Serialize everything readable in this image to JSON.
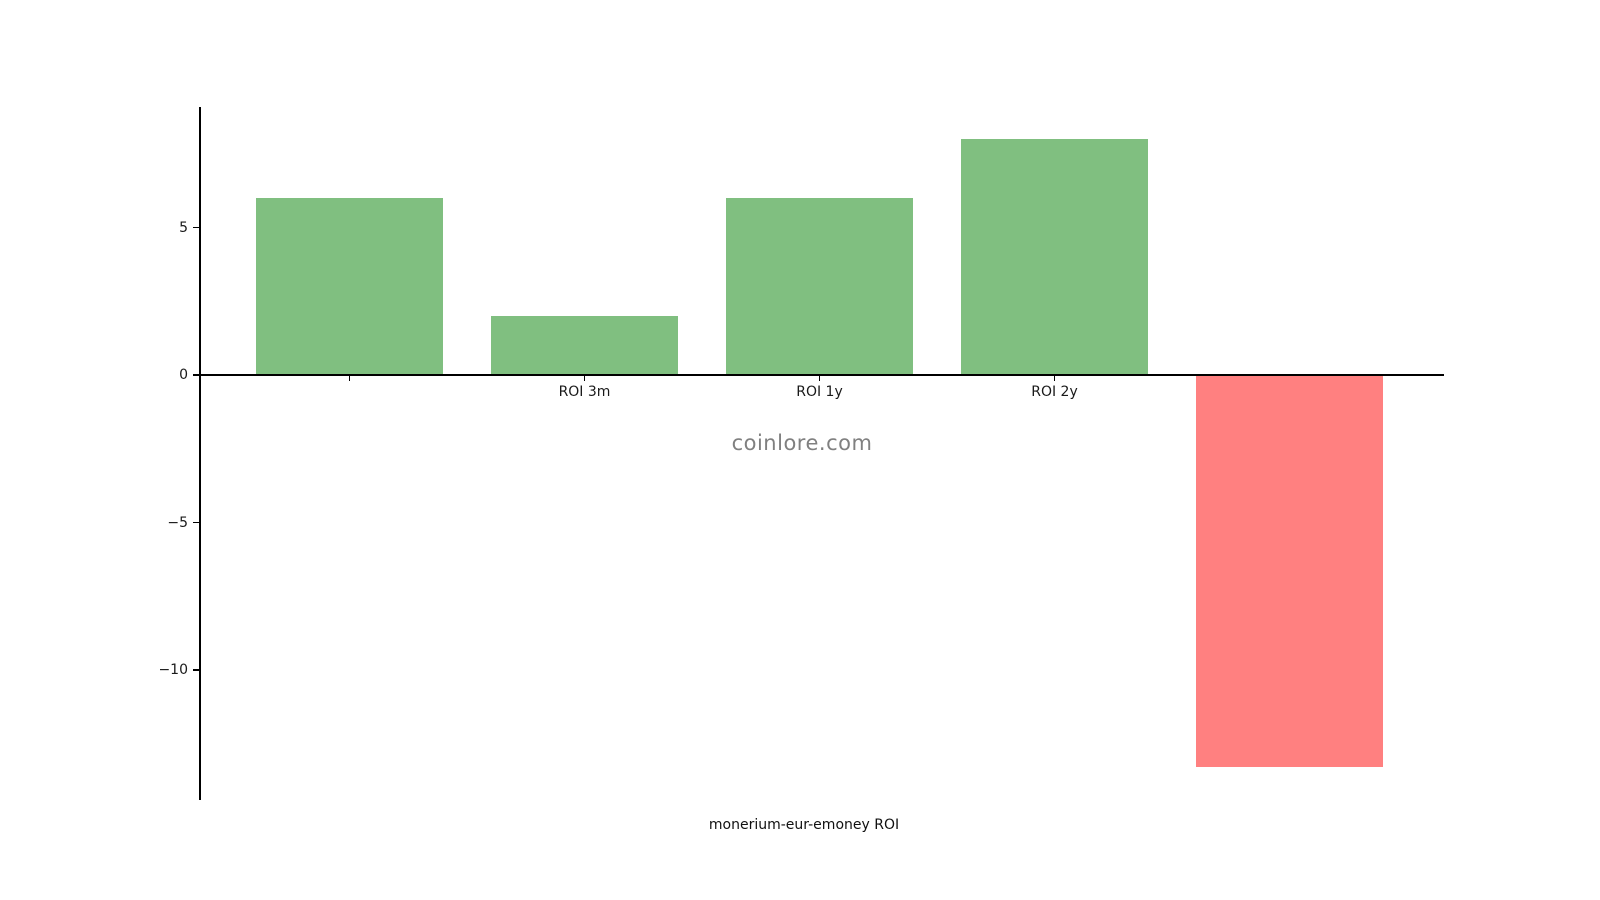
{
  "page": {
    "background": "#ffffff"
  },
  "watermark": {
    "text": "coinlore.com",
    "color": "#808080"
  },
  "chart_data": {
    "type": "bar",
    "title": "monerium-eur-emoney ROI",
    "categories": [
      "",
      "ROI 3m",
      "ROI 1y",
      "ROI 2y",
      ""
    ],
    "values": [
      6,
      2,
      6,
      8,
      -13.3
    ],
    "bar_colors": [
      "#80bf80",
      "#80bf80",
      "#80bf80",
      "#80bf80",
      "#ff8080"
    ],
    "positive_color": "#80bf80",
    "negative_color": "#ff8080",
    "axis_color": "#000000",
    "tick_label_color": "#1a1a1a",
    "yticks": [
      5,
      0,
      -5,
      -10
    ],
    "ytick_labels": [
      "5",
      "0",
      "−5",
      "−10"
    ],
    "ylim": [
      -14.4,
      9.1
    ],
    "xlabel": "",
    "ylabel": "",
    "grid": false,
    "legend": null
  }
}
